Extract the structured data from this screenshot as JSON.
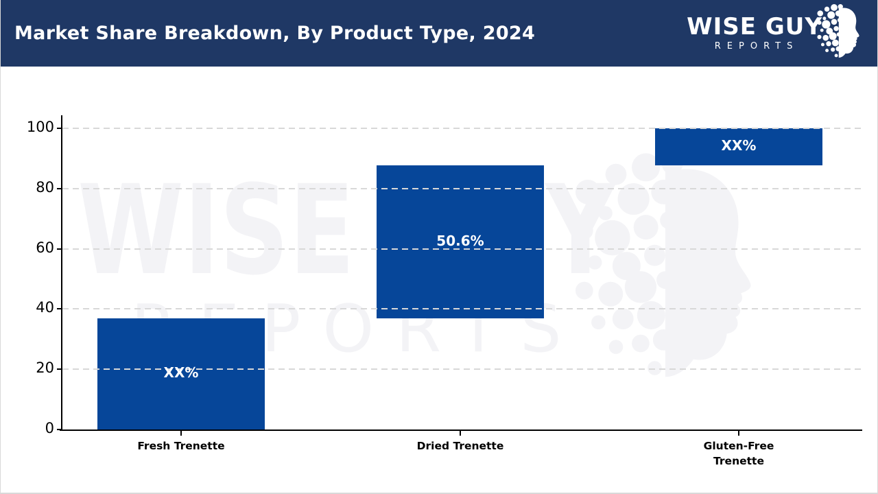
{
  "header": {
    "title": "Market Share Breakdown, By Product Type, 2024",
    "logo": {
      "line1": "WISE GUY",
      "line2": "REPORTS"
    }
  },
  "watermark": {
    "line1": "WISE GUY",
    "line2": "REPORTS"
  },
  "colors": {
    "header_bg": "#1f3865",
    "bar": "#064699",
    "grid": "#d8d8d8",
    "axis": "#000000",
    "bar_label": "#ffffff",
    "watermark": "#f3f3f6"
  },
  "chart_data": {
    "type": "bar",
    "variant": "waterfall-stacked",
    "title": "Market Share Breakdown, By Product Type, 2024",
    "categories": [
      "Fresh Trenette",
      "Dried Trenette",
      "Gluten-Free Trenette"
    ],
    "segments": [
      {
        "category": "Fresh Trenette",
        "label": "XX%",
        "start": 0,
        "end": 37
      },
      {
        "category": "Dried Trenette",
        "label": "50.6%",
        "start": 37,
        "end": 87.6
      },
      {
        "category": "Gluten-Free Trenette",
        "label": "XX%",
        "start": 87.6,
        "end": 100
      }
    ],
    "yticks": [
      0,
      20,
      40,
      60,
      80,
      100
    ],
    "ylim": [
      0,
      100
    ],
    "xlabel": "",
    "ylabel": "",
    "grid": "horizontal-dashed",
    "legend": "none",
    "bar_color": "#064699",
    "bar_label_color": "#ffffff"
  }
}
